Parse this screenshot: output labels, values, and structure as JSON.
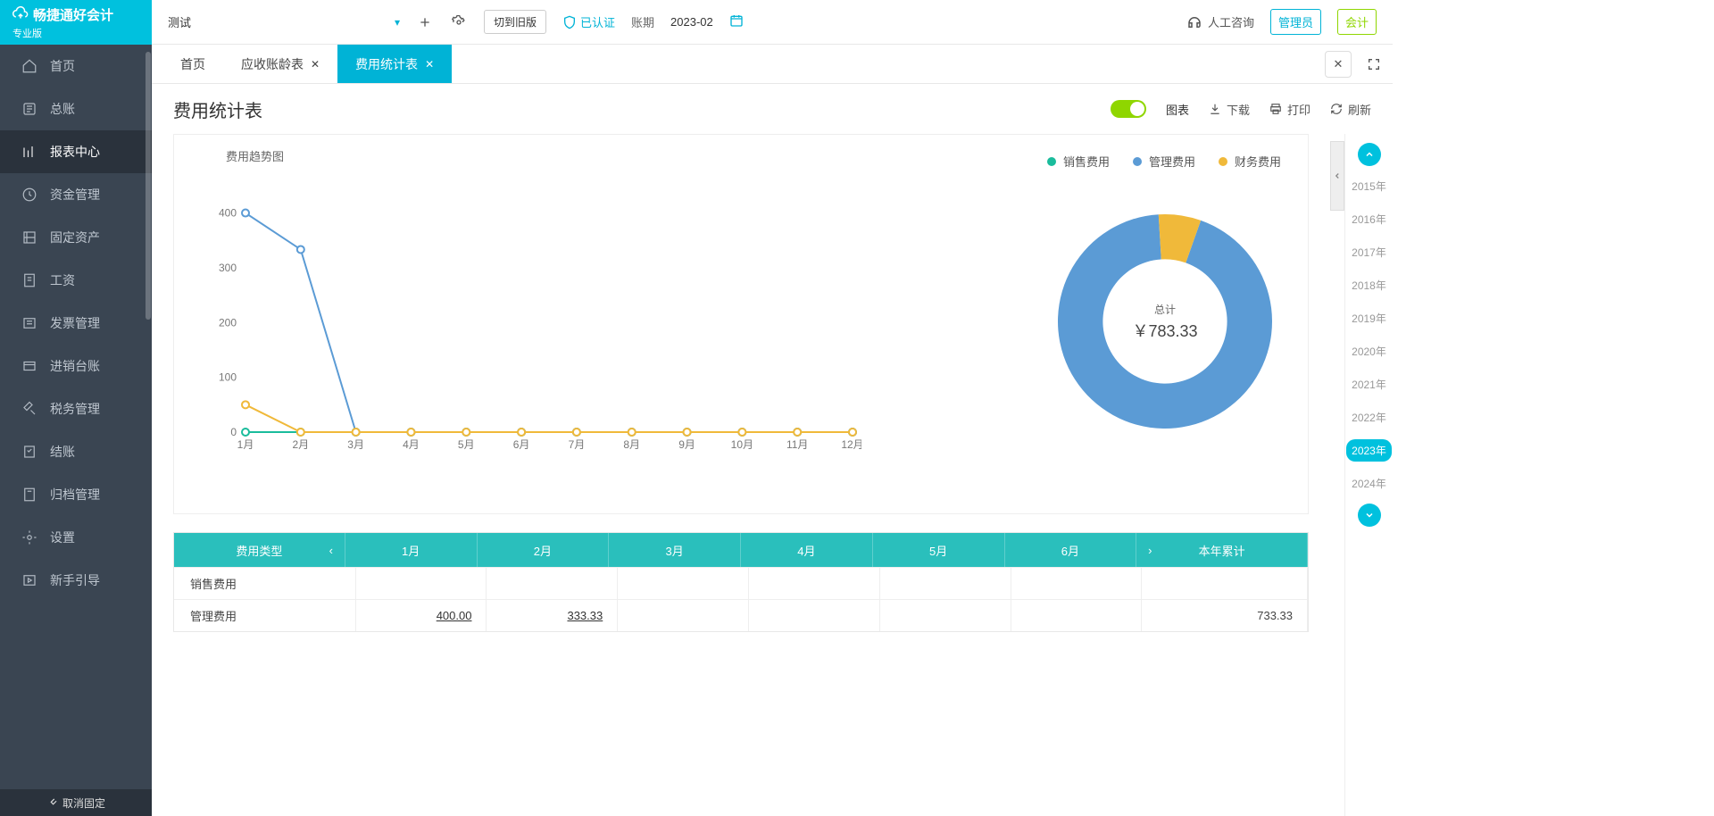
{
  "brand": {
    "title": "畅捷通好会计",
    "subtitle": "专业版"
  },
  "sidebar": {
    "items": [
      {
        "label": "首页"
      },
      {
        "label": "总账"
      },
      {
        "label": "报表中心"
      },
      {
        "label": "资金管理"
      },
      {
        "label": "固定资产"
      },
      {
        "label": "工资"
      },
      {
        "label": "发票管理"
      },
      {
        "label": "进销台账"
      },
      {
        "label": "税务管理"
      },
      {
        "label": "结账"
      },
      {
        "label": "归档管理"
      },
      {
        "label": "设置"
      },
      {
        "label": "新手引导"
      }
    ],
    "activeIndex": 2,
    "pinLabel": "取消固定"
  },
  "topbar": {
    "company": "测试",
    "oldVersionBtn": "切到旧版",
    "verified": "已认证",
    "periodLabel": "账期",
    "periodValue": "2023-02",
    "support": "人工咨询",
    "roleAdmin": "管理员",
    "roleAcct": "会计"
  },
  "tabs": [
    {
      "label": "首页",
      "closable": false
    },
    {
      "label": "应收账龄表",
      "closable": true
    },
    {
      "label": "费用统计表",
      "closable": true
    }
  ],
  "activeTabIndex": 2,
  "page": {
    "title": "费用统计表",
    "chartToggleLabel": "图表",
    "download": "下载",
    "print": "打印",
    "refresh": "刷新"
  },
  "chart": {
    "panelTitle": "费用趋势图",
    "legend": [
      {
        "label": "销售费用",
        "color": "#1abc9c"
      },
      {
        "label": "管理费用",
        "color": "#5b9bd5"
      },
      {
        "label": "财务费用",
        "color": "#f0b93a"
      }
    ],
    "line": {
      "categories": [
        "1月",
        "2月",
        "3月",
        "4月",
        "5月",
        "6月",
        "7月",
        "8月",
        "9月",
        "10月",
        "11月",
        "12月"
      ],
      "ylim": [
        0,
        440
      ],
      "yticks": [
        0,
        100,
        200,
        300,
        400
      ],
      "series": [
        {
          "name": "销售费用",
          "color": "#1abc9c",
          "values": [
            0,
            0,
            0,
            0,
            0,
            0,
            0,
            0,
            0,
            0,
            0,
            0
          ]
        },
        {
          "name": "管理费用",
          "color": "#5b9bd5",
          "values": [
            400,
            333.33,
            0,
            0,
            0,
            0,
            0,
            0,
            0,
            0,
            0,
            0
          ]
        },
        {
          "name": "财务费用",
          "color": "#f0b93a",
          "values": [
            50,
            0,
            0,
            0,
            0,
            0,
            0,
            0,
            0,
            0,
            0,
            0
          ]
        }
      ],
      "axis_color": "#999",
      "label_color": "#777",
      "label_fontsize": 12,
      "marker_radius": 4,
      "line_width": 2
    },
    "donut": {
      "centerLabel": "总计",
      "centerValue": "￥783.33",
      "slices": [
        {
          "label": "管理费用",
          "value": 733.33,
          "color": "#5b9bd5"
        },
        {
          "label": "财务费用",
          "value": 50,
          "color": "#f0b93a"
        },
        {
          "label": "销售费用",
          "value": 0,
          "color": "#1abc9c"
        }
      ],
      "inner_ratio": 0.58
    }
  },
  "yearPicker": {
    "years": [
      "2015年",
      "2016年",
      "2017年",
      "2018年",
      "2019年",
      "2020年",
      "2021年",
      "2022年",
      "2023年",
      "2024年"
    ],
    "activeIndex": 8
  },
  "table": {
    "typeHeader": "费用类型",
    "months": [
      "1月",
      "2月",
      "3月",
      "4月",
      "5月",
      "6月"
    ],
    "totalHeader": "本年累计",
    "rows": [
      {
        "type": "销售费用",
        "vals": [
          "",
          "",
          "",
          "",
          "",
          ""
        ],
        "total": ""
      },
      {
        "type": "管理费用",
        "vals": [
          "400.00",
          "333.33",
          "",
          "",
          "",
          ""
        ],
        "total": "733.33"
      }
    ]
  }
}
